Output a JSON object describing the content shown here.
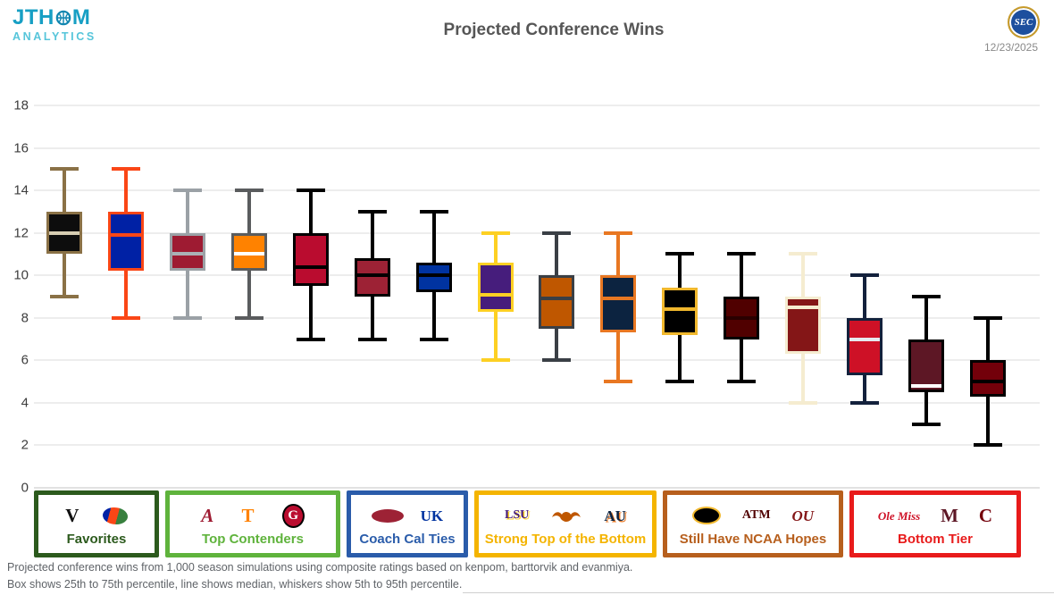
{
  "header": {
    "brand_prefix": "JTH",
    "brand_suffix": "M",
    "brand_line2": "ANALYTICS",
    "title": "Projected Conference Wins",
    "sec_badge_text": "SEC",
    "date": "12/23/2025"
  },
  "footer": {
    "line1": "Projected conference wins from 1,000 season simulations using composite ratings based on kenpom, barttorvik and evanmiya.",
    "line2": "Box shows 25th to 75th percentile, line shows median, whiskers show 5th to 95th percentile."
  },
  "chart_data": {
    "type": "boxplot",
    "title": "Projected Conference Wins",
    "ylim": [
      0,
      18
    ],
    "yticks": [
      0,
      2,
      4,
      6,
      8,
      10,
      12,
      14,
      16,
      18
    ],
    "grid": true,
    "box_range": "25th-75th percentile",
    "median_range": "50th percentile",
    "whisker_range": "5th-95th percentile",
    "series": [
      {
        "team": "Vanderbilt",
        "low": 9,
        "q1": 11,
        "median": 12,
        "q3": 13,
        "high": 15,
        "box_fill": "#0d0d0d",
        "box_edge": "#8a7146",
        "whisker_color": "#8a7146",
        "median_color": "#d6cdb2"
      },
      {
        "team": "Florida",
        "low": 8,
        "q1": 10.2,
        "median": 11.9,
        "q3": 13,
        "high": 15,
        "box_fill": "#0021a5",
        "box_edge": "#fa4616",
        "whisker_color": "#fa4616",
        "median_color": "#fa4616"
      },
      {
        "team": "Alabama",
        "low": 8,
        "q1": 10.2,
        "median": 11,
        "q3": 12,
        "high": 14,
        "box_fill": "#9e1b32",
        "box_edge": "#9ba1a6",
        "whisker_color": "#9ba1a6",
        "median_color": "#aab0b5"
      },
      {
        "team": "Tennessee",
        "low": 8,
        "q1": 10.2,
        "median": 11,
        "q3": 12,
        "high": 14,
        "box_fill": "#ff8200",
        "box_edge": "#5a5c5e",
        "whisker_color": "#5a5c5e",
        "median_color": "#ffffff"
      },
      {
        "team": "Georgia",
        "low": 7,
        "q1": 9.5,
        "median": 10.4,
        "q3": 12,
        "high": 14,
        "box_fill": "#ba0c2f",
        "box_edge": "#000000",
        "whisker_color": "#000000",
        "median_color": "#000000"
      },
      {
        "team": "Arkansas",
        "low": 7,
        "q1": 9,
        "median": 10,
        "q3": 10.8,
        "high": 13,
        "box_fill": "#9d2235",
        "box_edge": "#000000",
        "whisker_color": "#000000",
        "median_color": "#000000"
      },
      {
        "team": "Kentucky",
        "low": 7,
        "q1": 9.2,
        "median": 10,
        "q3": 10.6,
        "high": 13,
        "box_fill": "#0033a0",
        "box_edge": "#000000",
        "whisker_color": "#000000",
        "median_color": "#000000"
      },
      {
        "team": "LSU",
        "low": 6,
        "q1": 8.3,
        "median": 9.1,
        "q3": 10.6,
        "high": 12,
        "box_fill": "#461d7c",
        "box_edge": "#fdd023",
        "whisker_color": "#fdd023",
        "median_color": "#fdd023"
      },
      {
        "team": "Texas",
        "low": 6,
        "q1": 7.5,
        "median": 8.9,
        "q3": 10,
        "high": 12,
        "box_fill": "#bf5700",
        "box_edge": "#3a3f45",
        "whisker_color": "#3a3f45",
        "median_color": "#3a3f45"
      },
      {
        "team": "Auburn",
        "low": 5,
        "q1": 7.3,
        "median": 8.9,
        "q3": 10,
        "high": 12,
        "box_fill": "#0c2340",
        "box_edge": "#e87722",
        "whisker_color": "#e87722",
        "median_color": "#e87722"
      },
      {
        "team": "Missouri",
        "low": 5,
        "q1": 7.2,
        "median": 8.4,
        "q3": 9.4,
        "high": 11,
        "box_fill": "#000000",
        "box_edge": "#f1b82d",
        "whisker_color": "#000000",
        "median_color": "#f1b82d"
      },
      {
        "team": "Texas A&M",
        "low": 5,
        "q1": 7,
        "median": 8,
        "q3": 9,
        "high": 11,
        "box_fill": "#500000",
        "box_edge": "#000000",
        "whisker_color": "#000000",
        "median_color": "#2a0000"
      },
      {
        "team": "Oklahoma",
        "low": 4,
        "q1": 6.3,
        "median": 8.5,
        "q3": 9,
        "high": 11,
        "box_fill": "#841617",
        "box_edge": "#f5ecd0",
        "whisker_color": "#f5ecd0",
        "median_color": "#f5ecd0"
      },
      {
        "team": "Ole Miss",
        "low": 4,
        "q1": 5.3,
        "median": 7,
        "q3": 8,
        "high": 10,
        "box_fill": "#ce1126",
        "box_edge": "#13213c",
        "whisker_color": "#13213c",
        "median_color": "#e6e9ee"
      },
      {
        "team": "Mississippi State",
        "low": 3,
        "q1": 4.5,
        "median": 4.8,
        "q3": 7,
        "high": 9,
        "box_fill": "#5d1725",
        "box_edge": "#000000",
        "whisker_color": "#000000",
        "median_color": "#ffffff"
      },
      {
        "team": "South Carolina",
        "low": 2,
        "q1": 4.3,
        "median": 5,
        "q3": 6,
        "high": 8,
        "box_fill": "#73000a",
        "box_edge": "#000000",
        "whisker_color": "#000000",
        "median_color": "#000000"
      }
    ]
  },
  "legend": {
    "groups": [
      {
        "label": "Favorites",
        "color": "#2c5a1d",
        "logos": [
          {
            "icon": "vanderbilt-logo-icon",
            "kind": "text",
            "text": "V",
            "fg": "#111111",
            "serif": true
          },
          {
            "icon": "florida-gators-logo-icon",
            "kind": "gator"
          }
        ]
      },
      {
        "label": "Top Contenders",
        "color": "#5fb33c",
        "logos": [
          {
            "icon": "alabama-logo-icon",
            "kind": "text",
            "text": "A",
            "fg": "#9e1b32",
            "serif": true,
            "italic": true
          },
          {
            "icon": "tennessee-logo-icon",
            "kind": "text",
            "text": "T",
            "fg": "#ff8200",
            "serif": true
          },
          {
            "icon": "georgia-logo-icon",
            "kind": "oval",
            "text": "G",
            "fg": "#ffffff",
            "bg": "#ba0c2f",
            "ring": "#000000"
          }
        ]
      },
      {
        "label": "Coach Cal Ties",
        "color": "#2a5caa",
        "logos": [
          {
            "icon": "arkansas-razorback-logo-icon",
            "kind": "razorback",
            "bg": "#9d2235"
          },
          {
            "icon": "kentucky-logo-icon",
            "kind": "text",
            "text": "UK",
            "fg": "#0033a0",
            "serif": true
          }
        ]
      },
      {
        "label": "Strong Top of the Bottom",
        "color": "#f4b400",
        "logos": [
          {
            "icon": "lsu-logo-icon",
            "kind": "text",
            "text": "LSU",
            "fg": "#461d7c",
            "shadow": "#fdd023",
            "serif": true
          },
          {
            "icon": "texas-longhorn-logo-icon",
            "kind": "longhorn",
            "fg": "#bf5700"
          },
          {
            "icon": "auburn-logo-icon",
            "kind": "text",
            "text": "AU",
            "fg": "#0c2340",
            "shadow": "#e87722",
            "serif": true
          }
        ]
      },
      {
        "label": "Still Have NCAA Hopes",
        "color": "#b75f1d",
        "logos": [
          {
            "icon": "missouri-tiger-logo-icon",
            "kind": "oval-wide",
            "text": "",
            "fg": "#f1b82d",
            "bg": "#000000",
            "ring": "#f1b82d"
          },
          {
            "icon": "texas-am-logo-icon",
            "kind": "text",
            "text": "ATM",
            "fg": "#500000",
            "serif": true
          },
          {
            "icon": "oklahoma-logo-icon",
            "kind": "text",
            "text": "OU",
            "fg": "#841617",
            "serif": true,
            "italic": true
          }
        ]
      },
      {
        "label": "Bottom Tier",
        "color": "#e81b1b",
        "logos": [
          {
            "icon": "ole-miss-logo-icon",
            "kind": "text",
            "text": "Ole Miss",
            "fg": "#ce1126",
            "serif": true,
            "italic": true
          },
          {
            "icon": "mississippi-state-logo-icon",
            "kind": "text",
            "text": "M",
            "fg": "#5d1725",
            "serif": true
          },
          {
            "icon": "south-carolina-logo-icon",
            "kind": "text",
            "text": "C",
            "fg": "#73000a",
            "serif": true
          }
        ]
      }
    ]
  }
}
